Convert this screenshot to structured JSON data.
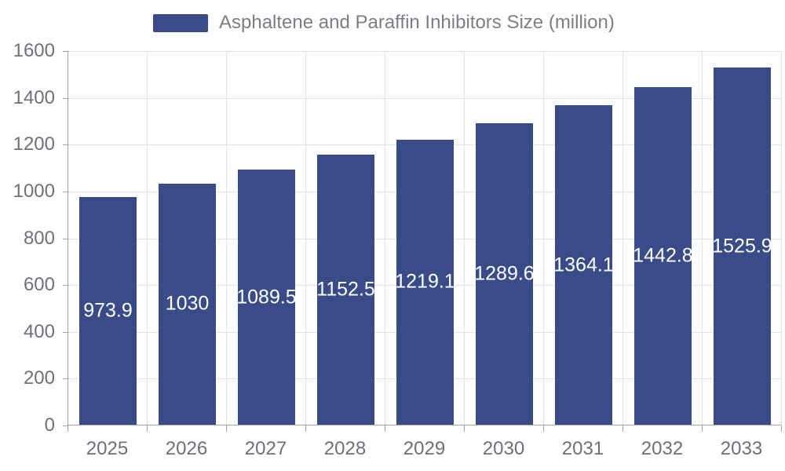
{
  "chart_data": {
    "type": "bar",
    "categories": [
      "2025",
      "2026",
      "2027",
      "2028",
      "2029",
      "2030",
      "2031",
      "2032",
      "2033"
    ],
    "values": [
      973.9,
      1030,
      1089.5,
      1152.5,
      1219.1,
      1289.6,
      1364.1,
      1442.8,
      1525.9
    ],
    "value_labels": [
      "973.9",
      "1030",
      "1089.5",
      "1152.5",
      "1219.1",
      "1289.6",
      "1364.1",
      "1442.8",
      "1525.9"
    ],
    "title": "Asphaltene and Paraffin Inhibitors Size (million)",
    "legend": {
      "label": "Asphaltene and Paraffin Inhibitors Size (million)",
      "position": "top"
    },
    "xlabel": "",
    "ylabel": "",
    "ylim": [
      0,
      1600
    ],
    "y_ticks": [
      0,
      200,
      400,
      600,
      800,
      1000,
      1200,
      1400,
      1600
    ],
    "grid": "horizontal and vertical",
    "colors": {
      "bar": "#3A4C87",
      "bar_label": "#FFFFFF",
      "axis_label": "#6E7079",
      "legend_text": "#7A7E85",
      "gridline": "#E2E4EA",
      "axis_line": "#9FA3A9",
      "background": "#FFFFFF"
    }
  }
}
